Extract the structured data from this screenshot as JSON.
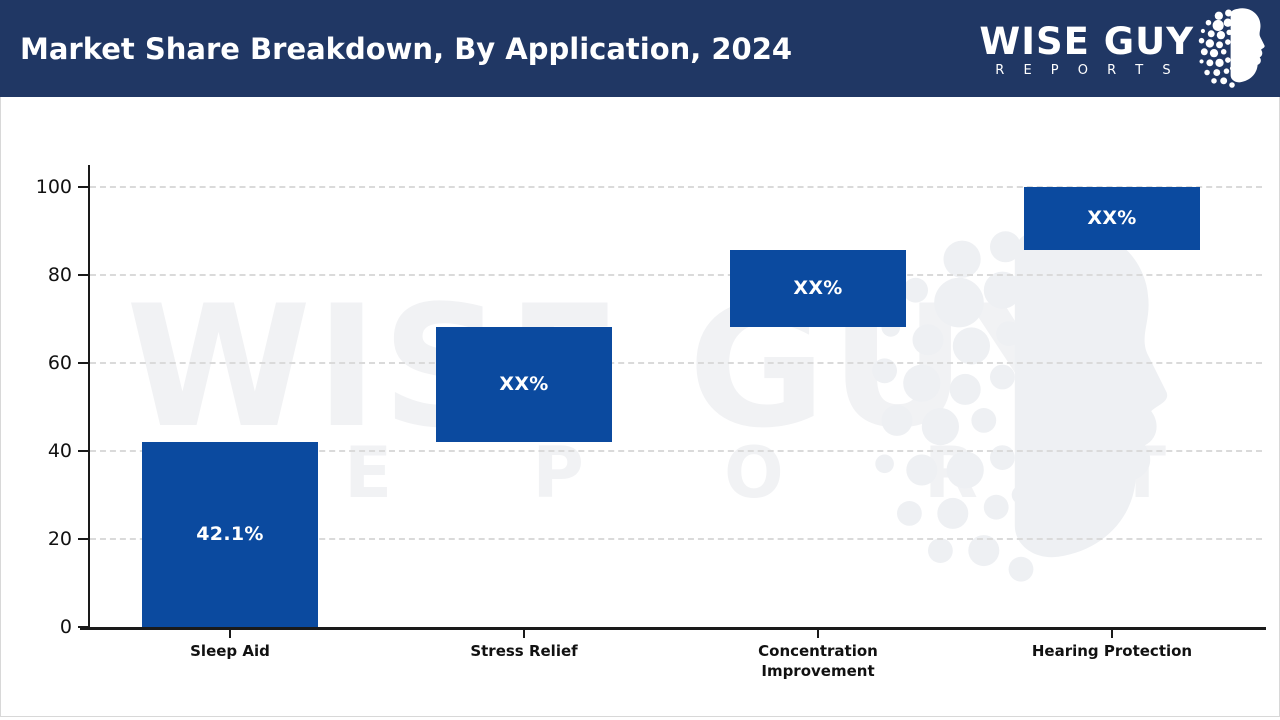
{
  "header": {
    "title": "Market Share Breakdown, By Application, 2024",
    "bg_color": "#203764",
    "logo": {
      "line1": "WISE GUY",
      "line2": "R E P O R T S",
      "head_icon": "dotted-head-profile"
    }
  },
  "watermark": {
    "line1": "WISE GUY",
    "line2": "R E P O R T S",
    "head_icon": "dotted-head-profile"
  },
  "chart_data": {
    "type": "bar",
    "subtype": "waterfall",
    "title": "Market Share Breakdown, By Application, 2024",
    "categories": [
      "Sleep Aid",
      "Stress Relief",
      "Concentration Improvement",
      "Hearing Protection"
    ],
    "segments": [
      {
        "category": "Sleep Aid",
        "start": 0,
        "end": 42.1,
        "label": "42.1%"
      },
      {
        "category": "Stress Relief",
        "start": 42.1,
        "end": 68.2,
        "label": "XX%"
      },
      {
        "category": "Concentration Improvement",
        "start": 68.2,
        "end": 85.7,
        "label": "XX%"
      },
      {
        "category": "Hearing Protection",
        "start": 85.7,
        "end": 100,
        "label": "XX%"
      }
    ],
    "yticks": [
      0,
      20,
      40,
      60,
      80,
      100
    ],
    "ylim": [
      0,
      105
    ],
    "xlabel": "",
    "ylabel": "",
    "grid": "horizontal-dashed",
    "legend": "none",
    "bar_color": "#0b4a9f",
    "bar_label_color": "#ffffff",
    "axis_color": "#1a1a1a",
    "grid_color": "#dadada"
  }
}
